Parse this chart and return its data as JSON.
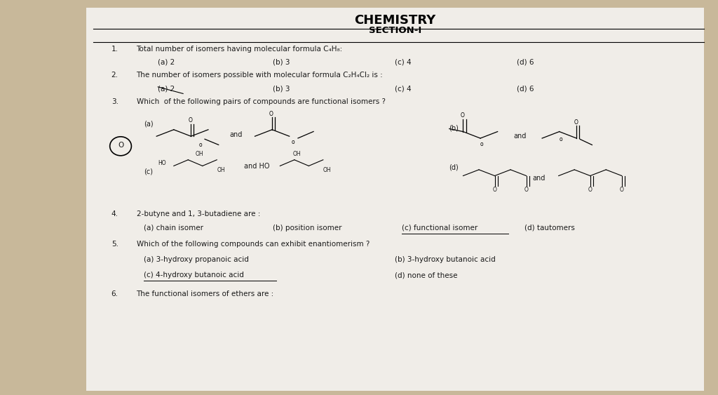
{
  "background_color": "#c8b89a",
  "page_color": "#f0ede8",
  "title": "CHEMISTRY",
  "section": "SECTION-I",
  "q1_num": "1.",
  "q1_text": "Total number of isomers having molecular formula C₄H₈:",
  "q1_a": "(a) 2",
  "q1_b": "(b) 3",
  "q1_c": "(c) 4",
  "q1_d": "(d) 6",
  "q2_num": "2.",
  "q2_text": "The number of isomers possible with molecular formula C₂H₄Cl₂ is :",
  "q2_a": "(a) 2",
  "q2_b": "(b) 3",
  "q2_c": "(c) 4",
  "q2_d": "(d) 6",
  "q3_num": "3.",
  "q3_text": "Which  of the following pairs of compounds are functional isomers ?",
  "q4_num": "4.",
  "q4_text": "2-butyne and 1, 3-butadiene are :",
  "q4_a": "(a) chain isomer",
  "q4_b": "(b) position isomer",
  "q4_c": "(c) functional isomer",
  "q4_d": "(d) tautomers",
  "q5_num": "5.",
  "q5_text": "Which of the following compounds can exhibit enantiomerism ?",
  "q5_a": "(a) 3-hydroxy propanoic acid",
  "q5_b": "(b) 3-hydroxy butanoic acid",
  "q5_c": "(c) 4-hydroxy butanoic acid",
  "q5_d": "(d) none of these",
  "q6_num": "6.",
  "q6_text": "The functional isomers of ethers are :",
  "circle_label": "O",
  "text_color": "#1a1a1a",
  "title_color": "#000000"
}
